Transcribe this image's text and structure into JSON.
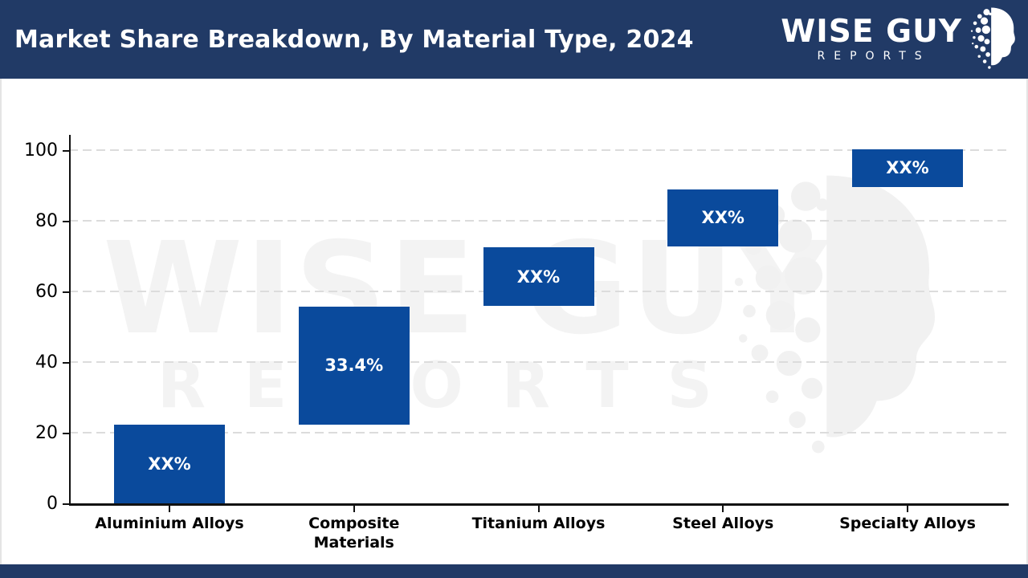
{
  "theme": {
    "navy": "#213a66",
    "bar_blue": "#0a4a9c",
    "watermark_gray": "#f3f3f3",
    "grid_gray": "#dcdcdc"
  },
  "header": {
    "title": "Market Share Breakdown, By Material Type, 2024",
    "logo": {
      "line1": "WISE GUY",
      "line2": "REPORTS"
    }
  },
  "watermark": {
    "line1": "WISE GUY",
    "line2": "REPORTS"
  },
  "chart_data": {
    "type": "bar",
    "variant": "floating waterfall-style vertical bars",
    "title": "Market Share Breakdown, By Material Type, 2024",
    "categories": [
      "Aluminium Alloys",
      "Composite\nMaterials",
      "Titanium Alloys",
      "Steel Alloys",
      "Specialty Alloys"
    ],
    "series": [
      {
        "name": "Market Share (%)",
        "bar_start": [
          0,
          22.3,
          55.9,
          72.8,
          89.5
        ],
        "bar_end": [
          22.3,
          55.7,
          72.5,
          88.9,
          100.3
        ],
        "data_labels": [
          "XX%",
          "33.4%",
          "XX%",
          "XX%",
          "XX%"
        ]
      }
    ],
    "xlabel": "",
    "ylabel": "",
    "ylim": [
      0,
      107
    ],
    "yticks": [
      0,
      20,
      40,
      60,
      80,
      100
    ],
    "grid": {
      "horizontal": true,
      "style": "dashed"
    },
    "legend": "none",
    "bar_color": "#0a4a9c",
    "bar_label_color": "#ffffff"
  }
}
